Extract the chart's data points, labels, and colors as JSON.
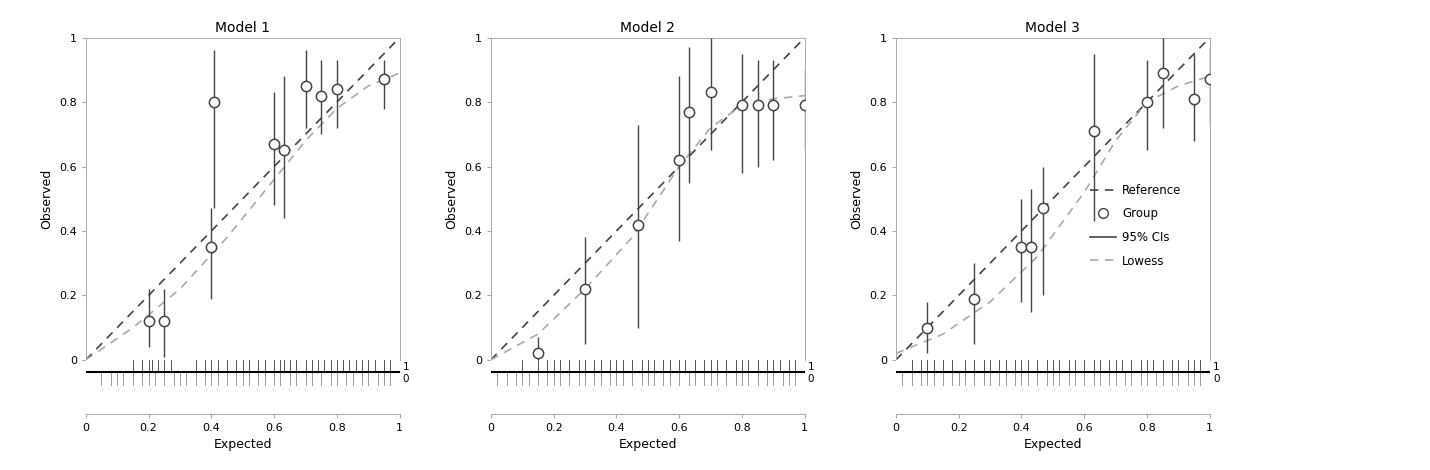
{
  "models": [
    "Model 1",
    "Model 2",
    "Model 3"
  ],
  "model1": {
    "x": [
      0.2,
      0.25,
      0.4,
      0.41,
      0.6,
      0.63,
      0.7,
      0.75,
      0.8,
      0.95
    ],
    "y": [
      0.12,
      0.12,
      0.35,
      0.8,
      0.67,
      0.65,
      0.85,
      0.82,
      0.84,
      0.87
    ],
    "ylo": [
      0.04,
      0.01,
      0.19,
      0.47,
      0.48,
      0.44,
      0.72,
      0.7,
      0.72,
      0.78
    ],
    "yhi": [
      0.22,
      0.22,
      0.47,
      0.96,
      0.83,
      0.88,
      0.96,
      0.93,
      0.93,
      0.93
    ],
    "lowess_x": [
      0.0,
      0.15,
      0.3,
      0.45,
      0.6,
      0.7,
      0.8,
      0.9,
      1.0
    ],
    "lowess_y": [
      0.0,
      0.1,
      0.22,
      0.38,
      0.56,
      0.68,
      0.78,
      0.85,
      0.89
    ],
    "rug1": [
      0.15,
      0.18,
      0.2,
      0.21,
      0.23,
      0.25,
      0.27,
      0.35,
      0.38,
      0.4,
      0.42,
      0.45,
      0.48,
      0.5,
      0.52,
      0.55,
      0.57,
      0.6,
      0.62,
      0.63,
      0.65,
      0.67,
      0.7,
      0.72,
      0.74,
      0.76,
      0.78,
      0.8,
      0.82,
      0.84,
      0.86,
      0.88,
      0.9,
      0.92,
      0.95,
      0.97,
      1.0
    ],
    "rug0": [
      0.05,
      0.08,
      0.1,
      0.12,
      0.15,
      0.18,
      0.2,
      0.22,
      0.25,
      0.28,
      0.3,
      0.32,
      0.35,
      0.38,
      0.4,
      0.42,
      0.45,
      0.48,
      0.5,
      0.52,
      0.55,
      0.57,
      0.6,
      0.62,
      0.65,
      0.67,
      0.7,
      0.72,
      0.75,
      0.78,
      0.8,
      0.83,
      0.85,
      0.88,
      0.9,
      0.93,
      0.95,
      0.97,
      1.0
    ]
  },
  "model2": {
    "x": [
      0.15,
      0.3,
      0.47,
      0.6,
      0.63,
      0.7,
      0.8,
      0.85,
      0.9,
      1.0
    ],
    "y": [
      0.02,
      0.22,
      0.42,
      0.62,
      0.77,
      0.83,
      0.79,
      0.79,
      0.79,
      0.79
    ],
    "ylo": [
      0.0,
      0.05,
      0.1,
      0.37,
      0.55,
      0.65,
      0.58,
      0.6,
      0.62,
      0.65
    ],
    "yhi": [
      0.07,
      0.38,
      0.73,
      0.88,
      0.97,
      1.0,
      0.95,
      0.93,
      0.93,
      0.9
    ],
    "lowess_x": [
      0.0,
      0.15,
      0.3,
      0.45,
      0.6,
      0.7,
      0.8,
      0.9,
      1.0
    ],
    "lowess_y": [
      0.0,
      0.08,
      0.22,
      0.38,
      0.6,
      0.72,
      0.79,
      0.81,
      0.82
    ],
    "rug1": [
      0.1,
      0.15,
      0.18,
      0.2,
      0.22,
      0.25,
      0.28,
      0.3,
      0.33,
      0.35,
      0.38,
      0.4,
      0.42,
      0.45,
      0.48,
      0.5,
      0.52,
      0.55,
      0.57,
      0.6,
      0.62,
      0.65,
      0.68,
      0.7,
      0.72,
      0.75,
      0.78,
      0.8,
      0.82,
      0.85,
      0.88,
      0.9,
      0.92,
      0.95,
      0.97,
      1.0
    ],
    "rug0": [
      0.02,
      0.05,
      0.08,
      0.1,
      0.12,
      0.15,
      0.18,
      0.2,
      0.22,
      0.25,
      0.28,
      0.3,
      0.33,
      0.35,
      0.38,
      0.4,
      0.42,
      0.45,
      0.48,
      0.5,
      0.52,
      0.55,
      0.57,
      0.6,
      0.63,
      0.65,
      0.68,
      0.7,
      0.72,
      0.75,
      0.78,
      0.8,
      0.82,
      0.85,
      0.88,
      0.9,
      0.93,
      0.95,
      0.97,
      1.0
    ]
  },
  "model3": {
    "x": [
      0.1,
      0.25,
      0.4,
      0.43,
      0.47,
      0.63,
      0.8,
      0.85,
      0.95,
      1.0
    ],
    "y": [
      0.1,
      0.19,
      0.35,
      0.35,
      0.47,
      0.71,
      0.8,
      0.89,
      0.81,
      0.87
    ],
    "ylo": [
      0.02,
      0.05,
      0.18,
      0.15,
      0.2,
      0.43,
      0.65,
      0.72,
      0.68,
      0.73
    ],
    "yhi": [
      0.18,
      0.3,
      0.5,
      0.53,
      0.6,
      0.95,
      0.93,
      1.0,
      0.95,
      0.97
    ],
    "lowess_x": [
      0.0,
      0.15,
      0.3,
      0.45,
      0.6,
      0.7,
      0.8,
      0.9,
      1.0
    ],
    "lowess_y": [
      0.02,
      0.08,
      0.18,
      0.32,
      0.52,
      0.68,
      0.8,
      0.85,
      0.88
    ],
    "rug1": [
      0.05,
      0.08,
      0.1,
      0.12,
      0.15,
      0.18,
      0.22,
      0.25,
      0.28,
      0.3,
      0.33,
      0.35,
      0.38,
      0.4,
      0.42,
      0.45,
      0.48,
      0.5,
      0.52,
      0.55,
      0.57,
      0.6,
      0.63,
      0.65,
      0.68,
      0.7,
      0.72,
      0.75,
      0.78,
      0.8,
      0.82,
      0.85,
      0.88,
      0.9,
      0.93,
      0.95,
      0.97,
      1.0
    ],
    "rug0": [
      0.02,
      0.05,
      0.08,
      0.1,
      0.12,
      0.15,
      0.18,
      0.2,
      0.22,
      0.25,
      0.28,
      0.3,
      0.33,
      0.35,
      0.38,
      0.4,
      0.42,
      0.45,
      0.48,
      0.5,
      0.52,
      0.55,
      0.57,
      0.6,
      0.63,
      0.65,
      0.68,
      0.7,
      0.73,
      0.75,
      0.78,
      0.8,
      0.83,
      0.85,
      0.88,
      0.9,
      0.93,
      0.95,
      0.97,
      1.0
    ]
  },
  "bg_color": "#ffffff",
  "plot_bg": "#ffffff",
  "ref_color": "#444444",
  "lowess_color": "#aaaaaa",
  "point_color": "#ffffff",
  "point_edge_color": "#444444",
  "ci_color": "#444444",
  "rug1_color": "#555555",
  "rug0_color": "#999999",
  "xlabel": "Expected",
  "ylabel": "Observed",
  "main_ylim": [
    0.0,
    1.0
  ],
  "xlim": [
    0.0,
    1.0
  ],
  "xticks": [
    0.0,
    0.2,
    0.4,
    0.6,
    0.8,
    1.0
  ],
  "yticks": [
    0.0,
    0.2,
    0.4,
    0.6,
    0.8,
    1.0
  ],
  "xticklabels": [
    "0",
    "0.2",
    "0.4",
    "0.6",
    "0.8",
    "1"
  ],
  "yticklabels": [
    "0",
    "0.2",
    "0.4",
    "0.6",
    "0.8",
    "1"
  ],
  "legend_labels": [
    "Reference",
    "Group",
    "95% CIs",
    "Lowess"
  ]
}
